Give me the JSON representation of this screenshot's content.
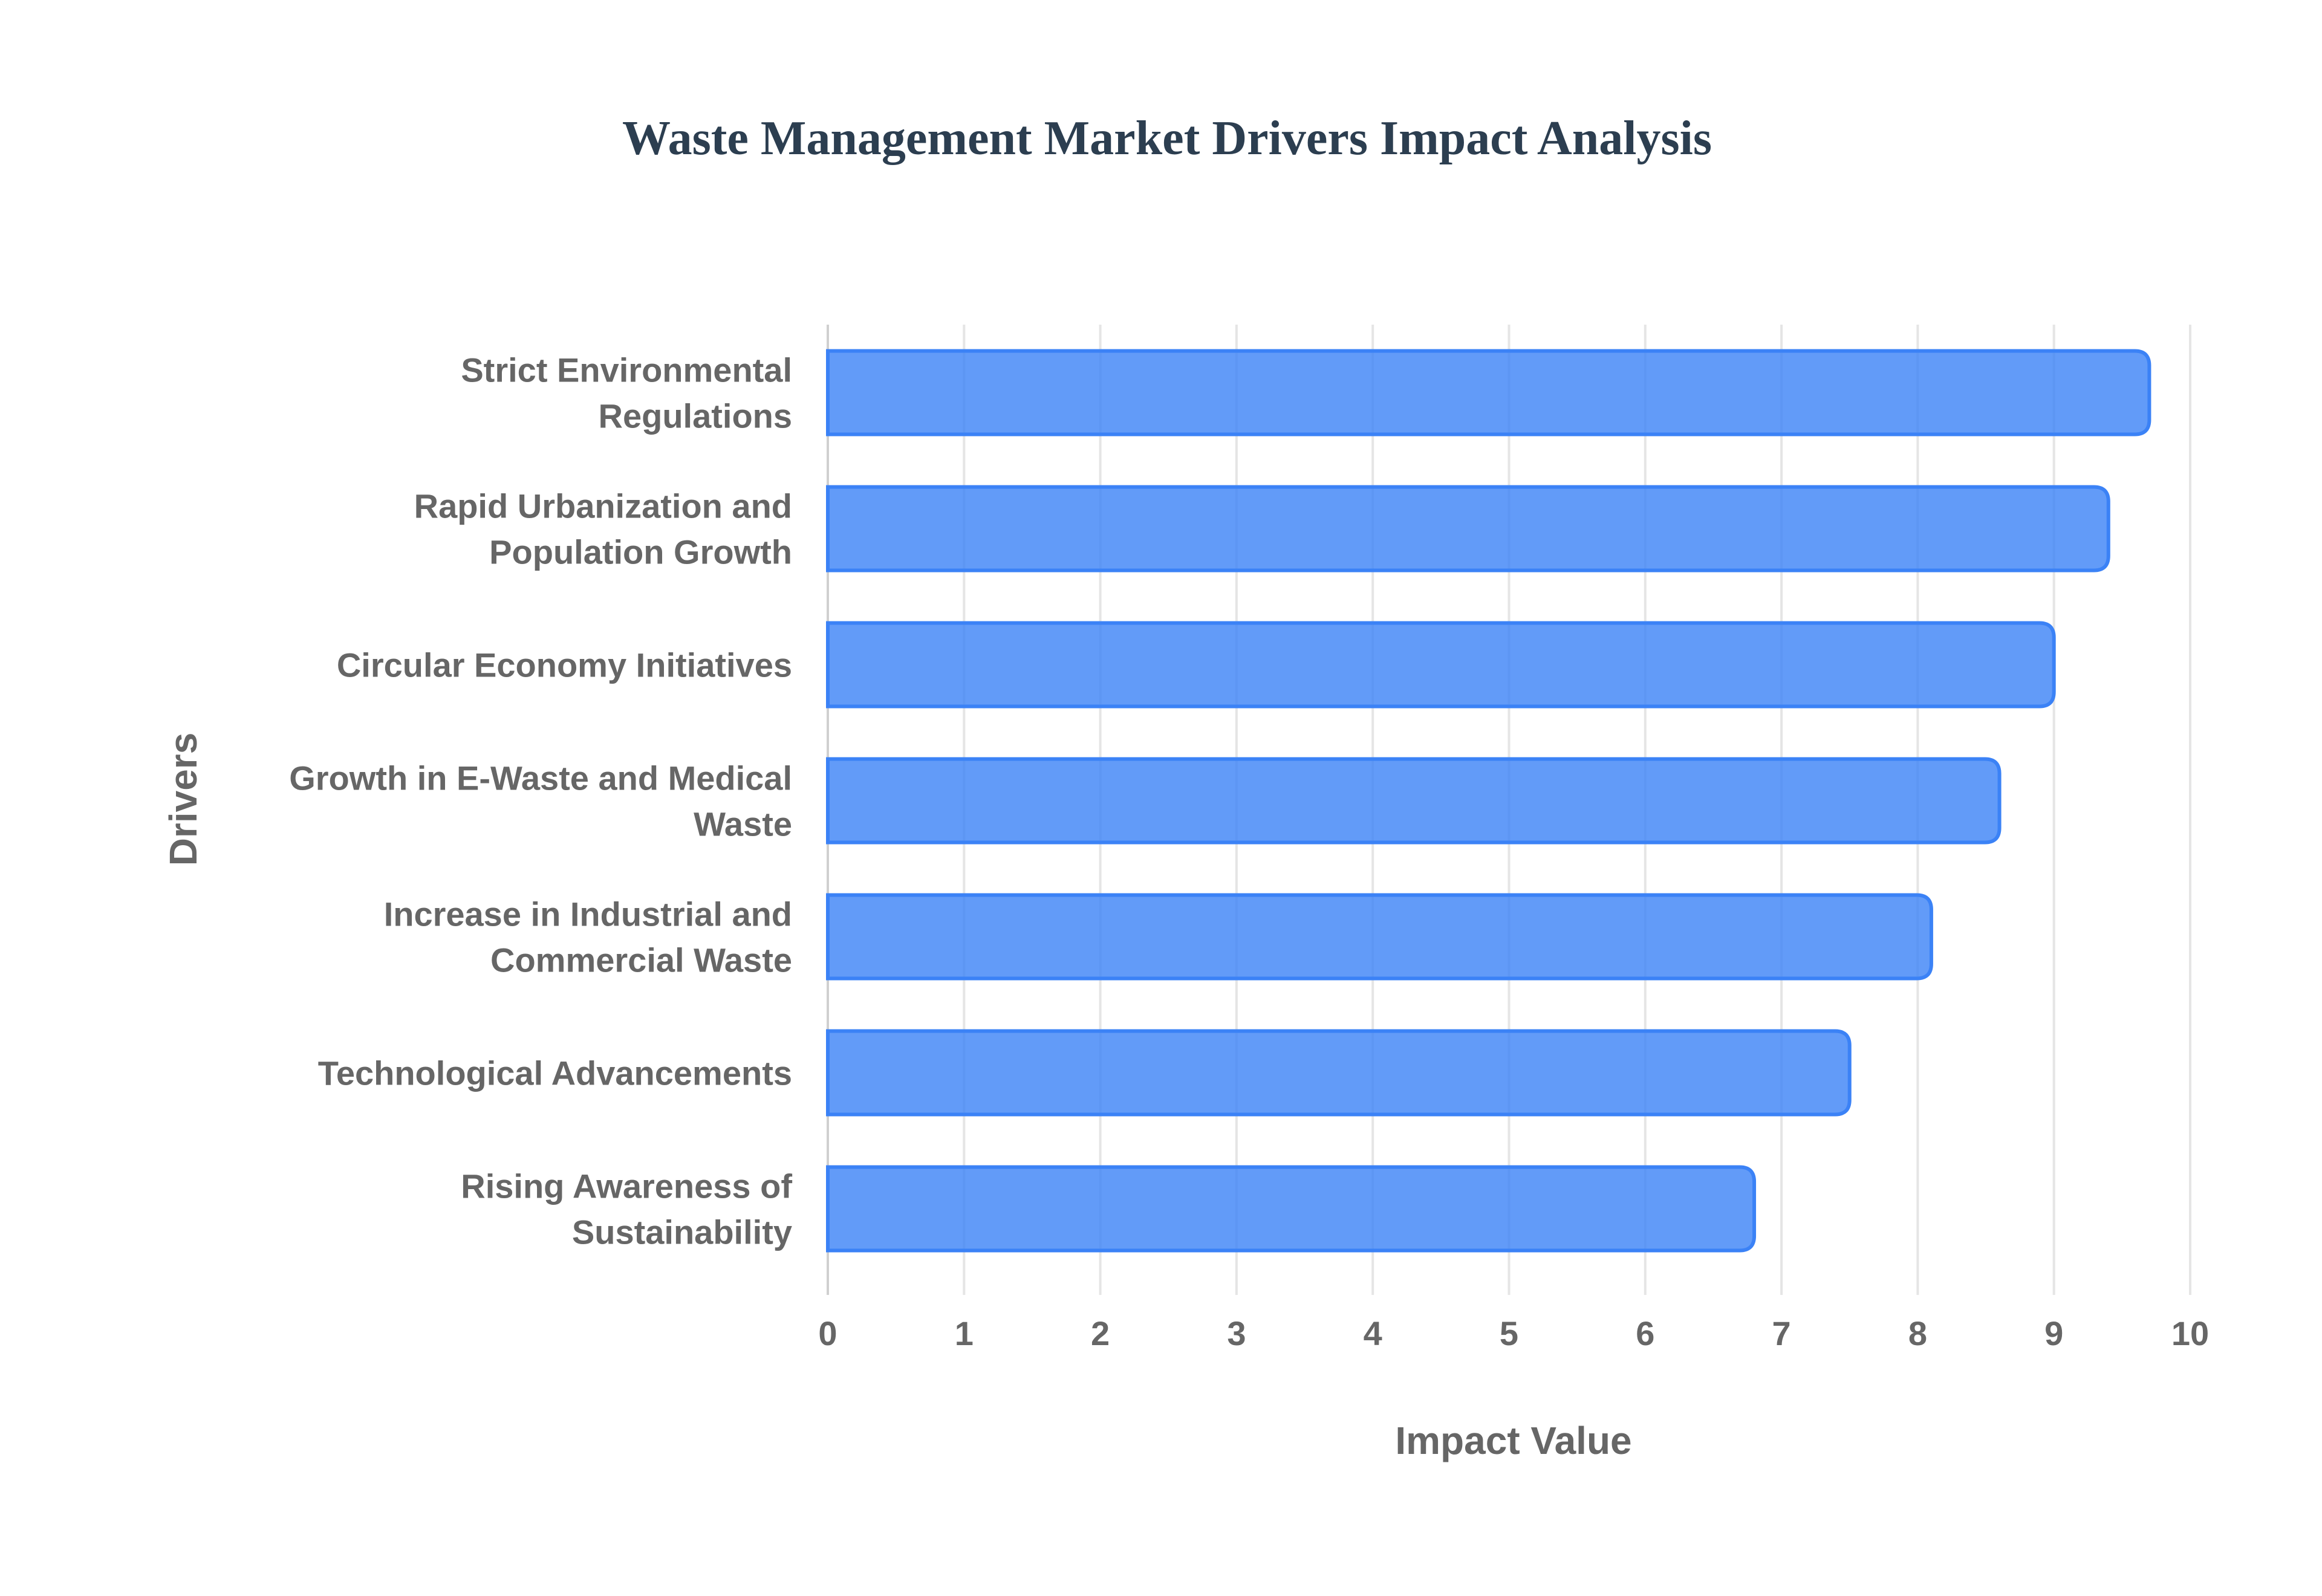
{
  "chart_data": {
    "type": "bar",
    "orientation": "horizontal",
    "title": "Waste Management Market Drivers Impact Analysis",
    "xlabel": "Impact Value",
    "ylabel": "Drivers",
    "xlim": [
      0,
      10
    ],
    "xticks": [
      "0",
      "1",
      "2",
      "3",
      "4",
      "5",
      "6",
      "7",
      "8",
      "9",
      "10"
    ],
    "grid": true,
    "legend": "none",
    "categories": [
      [
        "Strict Environmental",
        "Regulations"
      ],
      [
        "Rapid Urbanization and",
        "Population Growth"
      ],
      [
        "Circular Economy Initiatives"
      ],
      [
        "Growth in E-Waste and Medical",
        "Waste"
      ],
      [
        "Increase in Industrial and",
        "Commercial Waste"
      ],
      [
        "Technological Advancements"
      ],
      [
        "Rising Awareness of",
        "Sustainability"
      ]
    ],
    "values": [
      9.7,
      9.4,
      9.0,
      8.6,
      8.1,
      7.5,
      6.8
    ],
    "colors": {
      "bar_fill": "#3b82f6",
      "bar_border": "#3b82f6",
      "grid": "#e5e5e5",
      "title": "#2c3e50",
      "text": "#666666"
    }
  }
}
